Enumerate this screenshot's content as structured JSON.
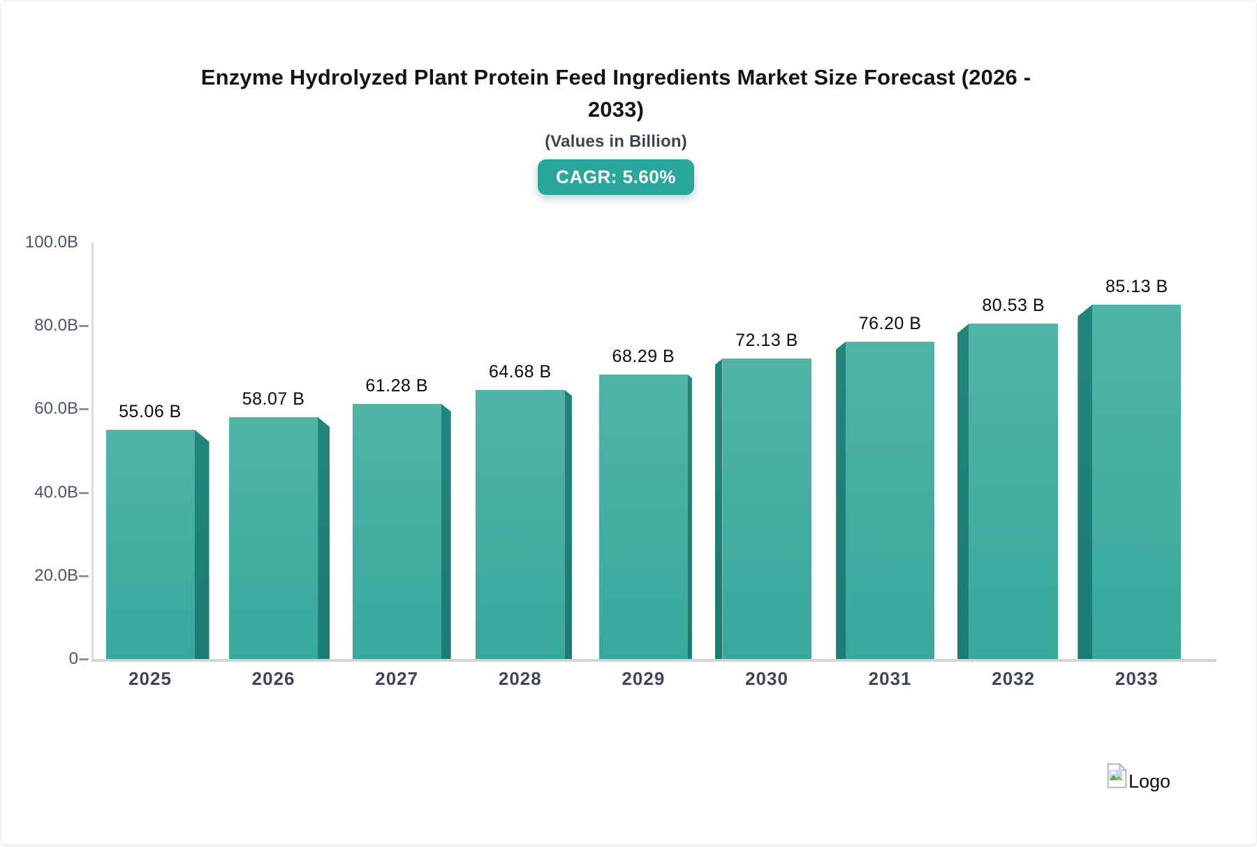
{
  "header": {
    "title_lines": [
      "Enzyme Hydrolyzed Plant Protein Feed Ingredients Market Size Forecast (2026 -",
      "2033)"
    ],
    "subtitle": "(Values in Billion)",
    "cagr_badge": "CAGR: 5.60%"
  },
  "footer": {
    "logo_text": "Logo",
    "logo_icon": "broken-image-icon"
  },
  "colors": {
    "accent": "#2aa79c",
    "bar_face_top": "#50b4a7",
    "bar_face_bottom": "#37a99b",
    "bar_side_top": "#22857c",
    "bar_side_bottom": "#1c7b72",
    "axis_line": "#dcdde2",
    "baseline": "#d2d3d9",
    "y_label": "#4a5468",
    "x_label": "#3b455b",
    "value_label": "#0a0a0a"
  },
  "chart_data": {
    "type": "bar",
    "title": "Enzyme Hydrolyzed Plant Protein Feed Ingredients Market Size Forecast (2026 - 2033)",
    "subtitle": "(Values in Billion)",
    "annotation": "CAGR: 5.60%",
    "categories": [
      "2025",
      "2026",
      "2027",
      "2028",
      "2029",
      "2030",
      "2031",
      "2032",
      "2033"
    ],
    "values": [
      55.06,
      58.07,
      61.28,
      64.68,
      68.29,
      72.13,
      76.2,
      80.53,
      85.13
    ],
    "value_labels": [
      "55.06 B",
      "58.07 B",
      "61.28 B",
      "64.68 B",
      "68.29 B",
      "72.13 B",
      "76.20 B",
      "80.53 B",
      "85.13 B"
    ],
    "xlabel": "",
    "ylabel": "",
    "ylim": [
      0,
      100
    ],
    "y_ticks": [
      {
        "label": "100.0B",
        "value": 100,
        "dash": false
      },
      {
        "label": "80.0B",
        "value": 80,
        "dash": true
      },
      {
        "label": "60.0B",
        "value": 60,
        "dash": true
      },
      {
        "label": "40.0B",
        "value": 40,
        "dash": true
      },
      {
        "label": "20.0B",
        "value": 20,
        "dash": true
      },
      {
        "label": "0",
        "value": 0,
        "dash": true
      }
    ],
    "grid": false,
    "legend": false,
    "bar_style": "3d-perspective-toward-center"
  }
}
